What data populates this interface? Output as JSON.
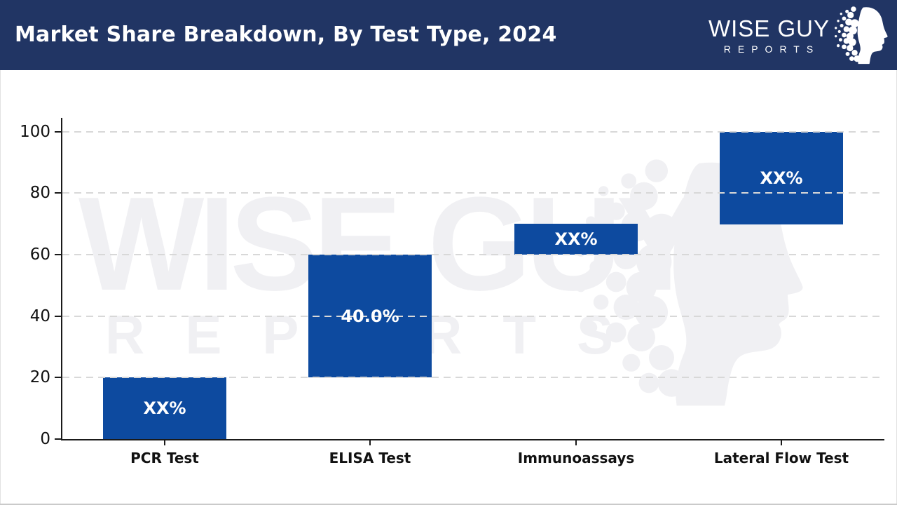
{
  "header": {
    "title": "Market Share Breakdown, By Test Type, 2024",
    "bg_color": "#213564",
    "logo": {
      "line1": "WISE GUY",
      "line2": "REPORTS"
    }
  },
  "watermark": {
    "line1": "WISE GUY",
    "line2": "REPORTS"
  },
  "chart_data": {
    "type": "bar",
    "subtype": "waterfall",
    "title": "Market Share Breakdown, By Test Type, 2024",
    "xlabel": "",
    "ylabel": "",
    "categories": [
      "PCR Test",
      "ELISA Test",
      "Immunoassays",
      "Lateral Flow Test"
    ],
    "bars": [
      {
        "category": "PCR Test",
        "start": 0,
        "end": 20,
        "label": "XX%"
      },
      {
        "category": "ELISA Test",
        "start": 20,
        "end": 60,
        "label": "40.0%"
      },
      {
        "category": "Immunoassays",
        "start": 60,
        "end": 70,
        "label": "XX%"
      },
      {
        "category": "Lateral Flow Test",
        "start": 70,
        "end": 100,
        "label": "XX%"
      }
    ],
    "yticks": [
      0,
      20,
      40,
      60,
      80,
      100
    ],
    "ylim": [
      0,
      100
    ],
    "grid": "dashed-horizontal-over-bars",
    "legend": "none",
    "bar_color": "#0d4a9f",
    "bar_label_color": "#ffffff",
    "axis_color": "#1a1a1a",
    "grid_color": "#d8d8d8"
  }
}
